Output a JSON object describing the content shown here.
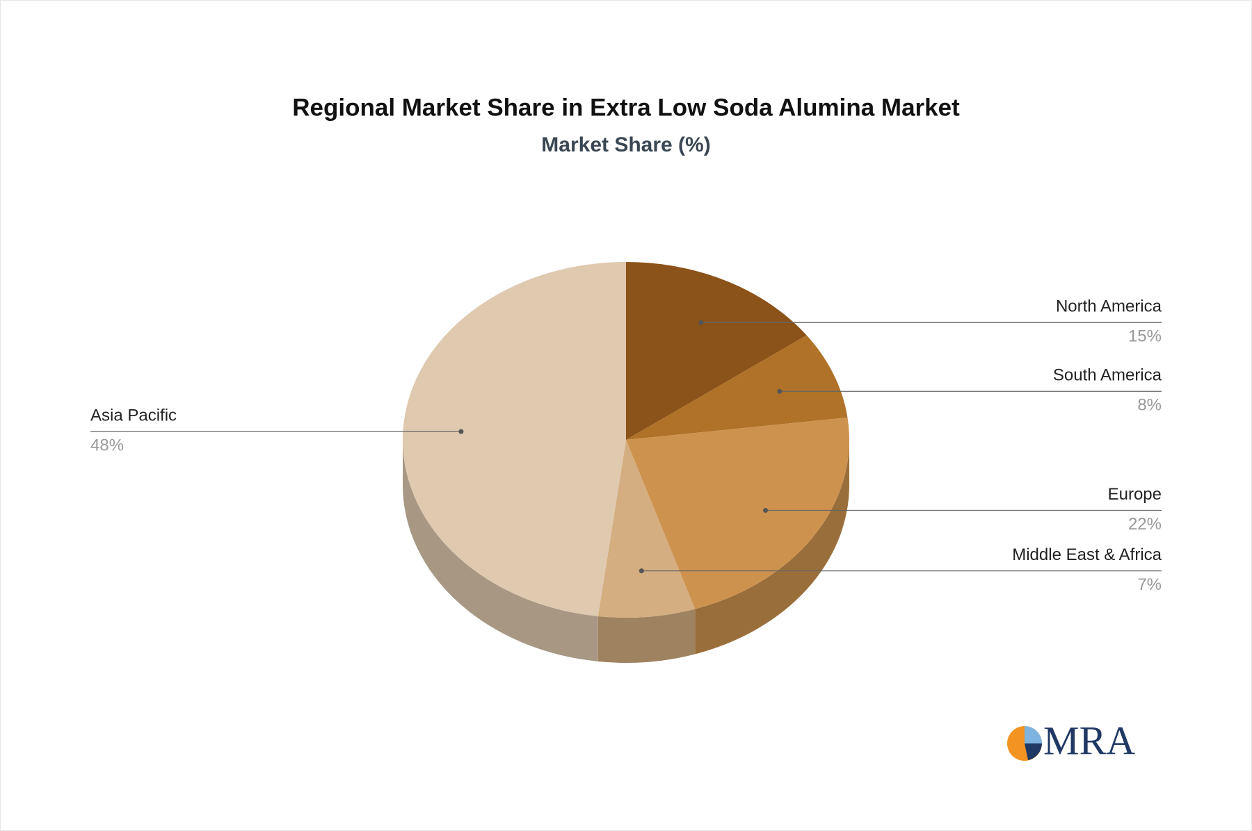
{
  "chart_data": {
    "type": "pie",
    "title": "Regional Market Share in Extra Low Soda Alumina Market",
    "subtitle": "Market Share (%)",
    "categories": [
      "North America",
      "South America",
      "Europe",
      "Middle East & Africa",
      "Asia Pacific"
    ],
    "values": [
      15,
      8,
      22,
      7,
      48
    ],
    "value_labels": [
      "15%",
      "8%",
      "22%",
      "7%",
      "48%"
    ],
    "colors": [
      "#8b5219",
      "#b07228",
      "#cd924e",
      "#d4ae80",
      "#dfc9af"
    ]
  },
  "logo": "MRA"
}
